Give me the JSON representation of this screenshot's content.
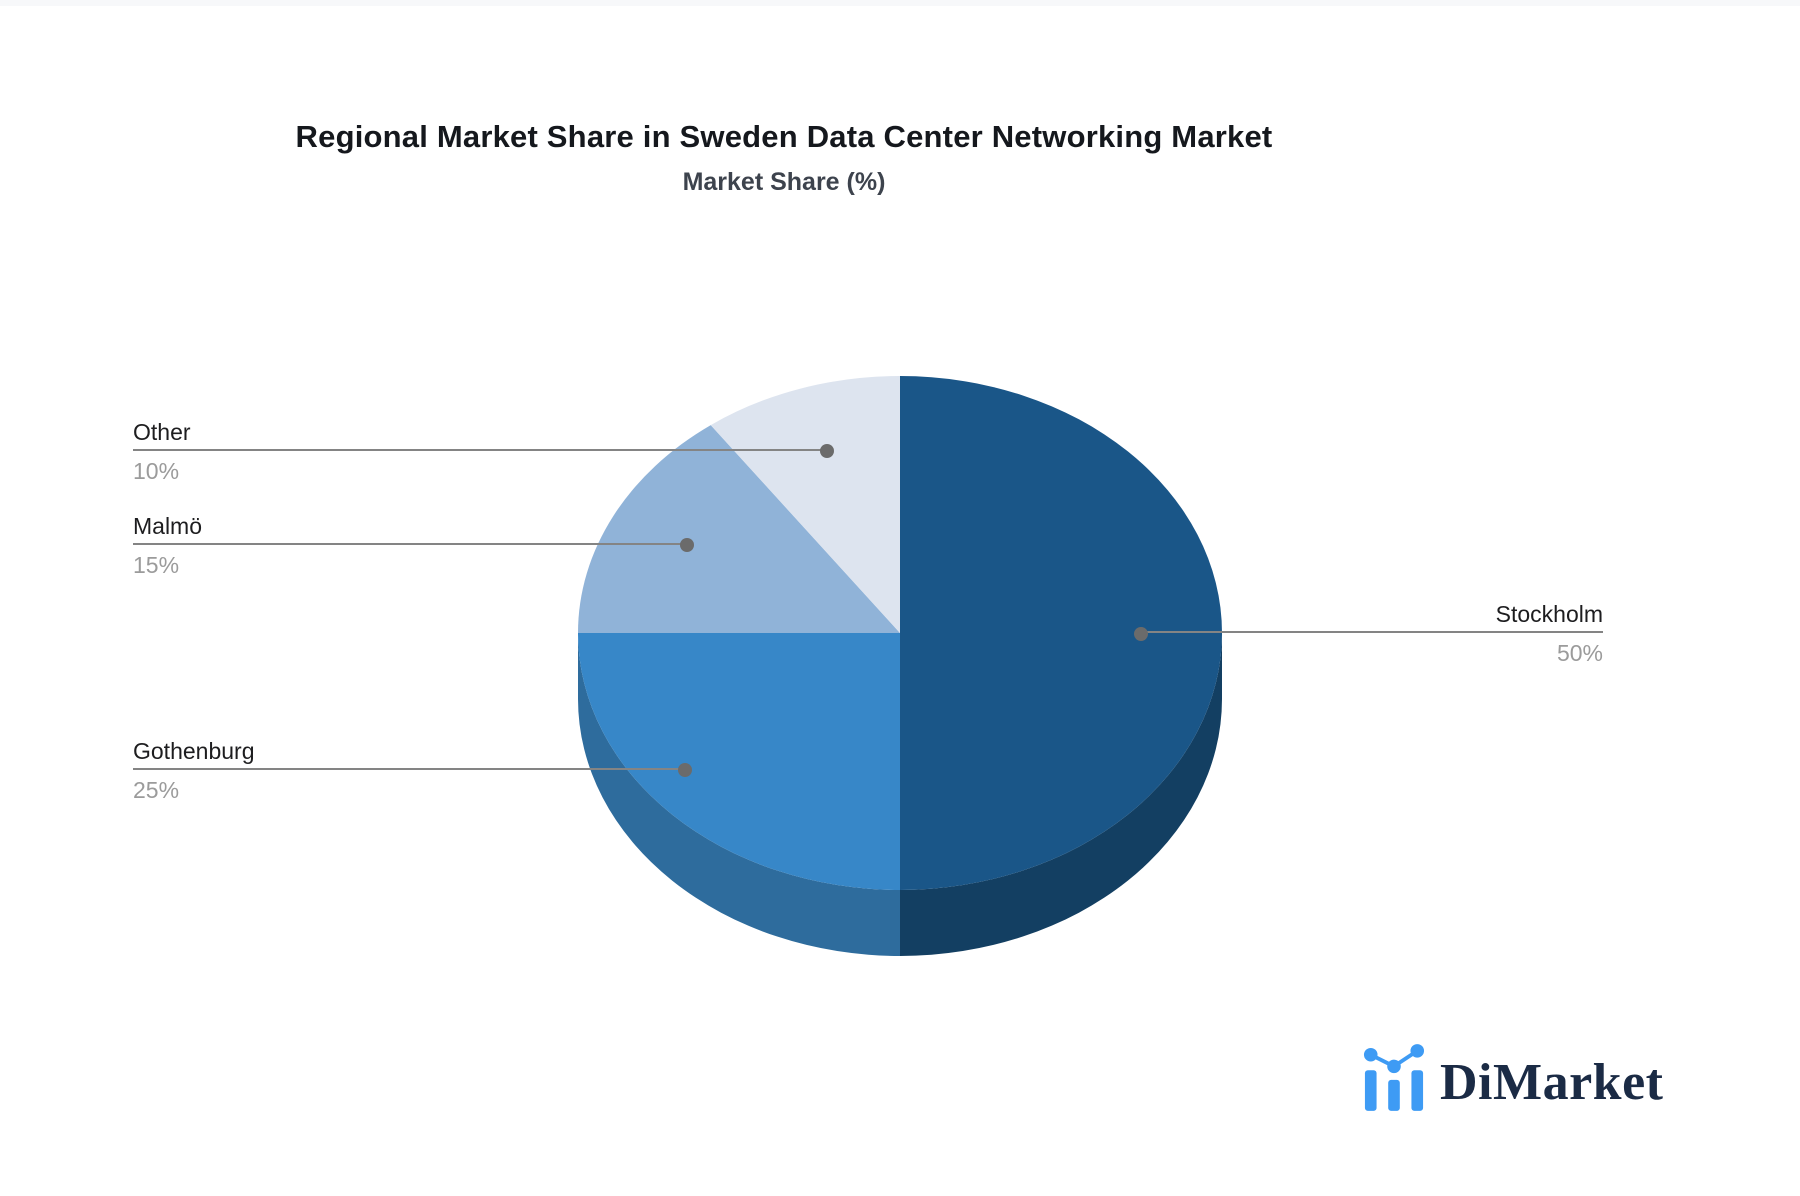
{
  "header": {
    "title": "Regional Market Share in Sweden Data Center Networking Market",
    "subtitle": "Market Share (%)"
  },
  "chart_data": {
    "type": "pie",
    "title": "Regional Market Share in Sweden Data Center Networking Market",
    "subtitle": "Market Share (%)",
    "unit": "%",
    "style": "3d-pie",
    "start_angle_deg": 0,
    "direction": "clockwise",
    "legend_position": "callout-labels",
    "series": [
      {
        "name": "Stockholm",
        "value": 50,
        "color": "#1a5688",
        "side_color": "#133f62"
      },
      {
        "name": "Gothenburg",
        "value": 25,
        "color": "#3787c8",
        "side_color": "#2e6c9d"
      },
      {
        "name": "Malmö",
        "value": 15,
        "color": "#90b3d8"
      },
      {
        "name": "Other",
        "value": 10,
        "color": "#dde4ef"
      }
    ]
  },
  "callouts": [
    {
      "label": "Other",
      "value": "10%"
    },
    {
      "label": "Malmö",
      "value": "15%"
    },
    {
      "label": "Gothenburg",
      "value": "25%"
    },
    {
      "label": "Stockholm",
      "value": "50%"
    }
  ],
  "branding": {
    "logo_text": "DiMarket",
    "logo_icon": "bar-line-chart-icon",
    "icon_color": "#3e9bf4",
    "text_color": "#1b2b45"
  },
  "colors": {
    "background": "#ffffff",
    "leader_line": "#848484",
    "leader_dot": "#6b6b6b",
    "label_text": "#1d1d1f",
    "value_text": "#9b9b9b",
    "title_text": "#15181d",
    "subtitle_text": "#3d434d"
  }
}
